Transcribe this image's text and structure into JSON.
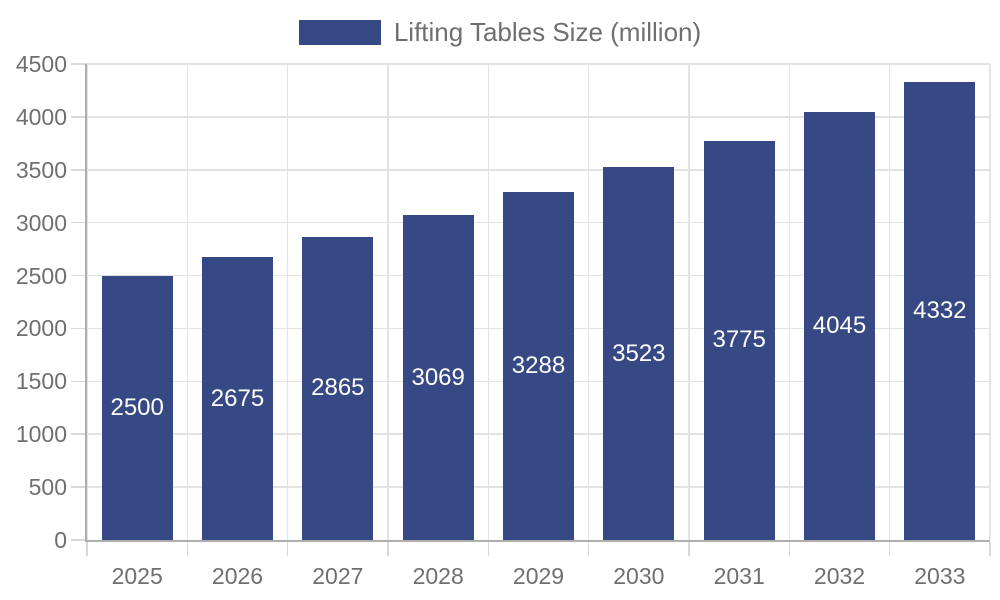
{
  "chart_data": {
    "type": "bar",
    "title": "",
    "legend": "Lifting Tables Size (million)",
    "legend_position": "top-center",
    "categories": [
      "2025",
      "2026",
      "2027",
      "2028",
      "2029",
      "2030",
      "2031",
      "2032",
      "2033"
    ],
    "values": [
      2500,
      2675,
      2865,
      3069,
      3288,
      3523,
      3775,
      4045,
      4332
    ],
    "xlabel": "",
    "ylabel": "",
    "ylim": [
      0,
      4500
    ],
    "yticks": [
      0,
      500,
      1000,
      1500,
      2000,
      2500,
      3000,
      3500,
      4000,
      4500
    ],
    "ytick_labels": [
      "0",
      "500",
      "1000",
      "1500",
      "2000",
      "2500",
      "3000",
      "3500",
      "4000",
      "4500"
    ],
    "grid": "both",
    "bar_color": "#374985",
    "value_label_style": "white, centered inside bar"
  },
  "colors": {
    "bar": "#374985",
    "grid": "#e3e3e3",
    "tick": "#d8d8d8",
    "axis": "#adadad",
    "text": "#6f6f6f",
    "value_label": "#ffffff",
    "background": "#ffffff"
  }
}
